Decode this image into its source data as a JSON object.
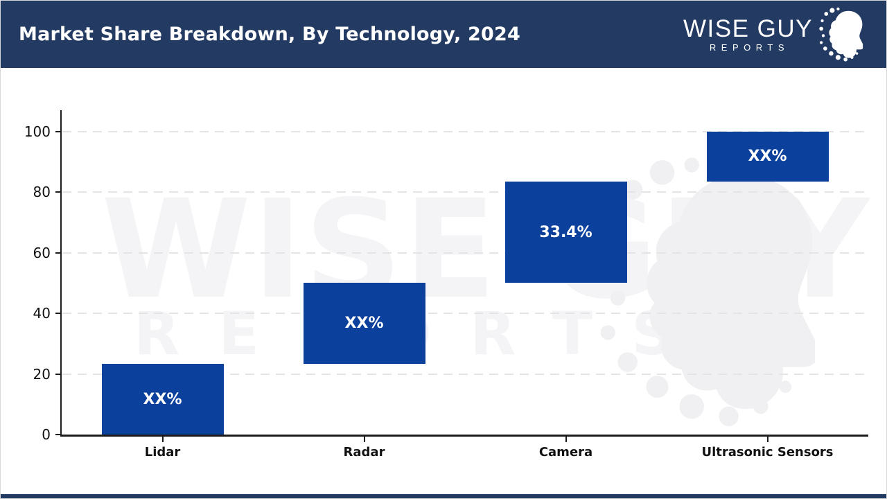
{
  "header": {
    "title": "Market Share Breakdown, By Technology, 2024",
    "logo": {
      "line1": "WISE GUY",
      "line2": "REPORTS"
    }
  },
  "watermark": {
    "line1": "WISE GUY",
    "line2": "REPORTS"
  },
  "colors": {
    "header_bg": "#233a62",
    "header_text": "#ffffff",
    "bar_fill": "#0b409d",
    "bar_label": "#ffffff",
    "axis": "#1c1c1c",
    "grid": "#e4e4e4",
    "tick_text": "#111111",
    "watermark": "#f4f4f6",
    "watermark_face": "#f0f0f2",
    "footer_bg": "#233a62"
  },
  "chart_data": {
    "type": "bar",
    "subtype": "floating-waterfall",
    "title": "Market Share Breakdown, By Technology, 2024",
    "categories": [
      "Lidar",
      "Radar",
      "Camera",
      "Ultrasonic Sensors"
    ],
    "bars": [
      {
        "category": "Lidar",
        "start": 0,
        "end": 23.3,
        "value_label": "XX%"
      },
      {
        "category": "Radar",
        "start": 23.3,
        "end": 50,
        "value_label": "XX%"
      },
      {
        "category": "Camera",
        "start": 50,
        "end": 83.4,
        "value_label": "33.4%"
      },
      {
        "category": "Ultrasonic Sensors",
        "start": 83.4,
        "end": 100,
        "value_label": "XX%"
      }
    ],
    "yticks": [
      0,
      20,
      40,
      60,
      80,
      100
    ],
    "ylim": [
      0,
      107
    ],
    "xlabel": "",
    "ylabel": "",
    "grid": "dashed-horizontal",
    "legend": "none"
  }
}
